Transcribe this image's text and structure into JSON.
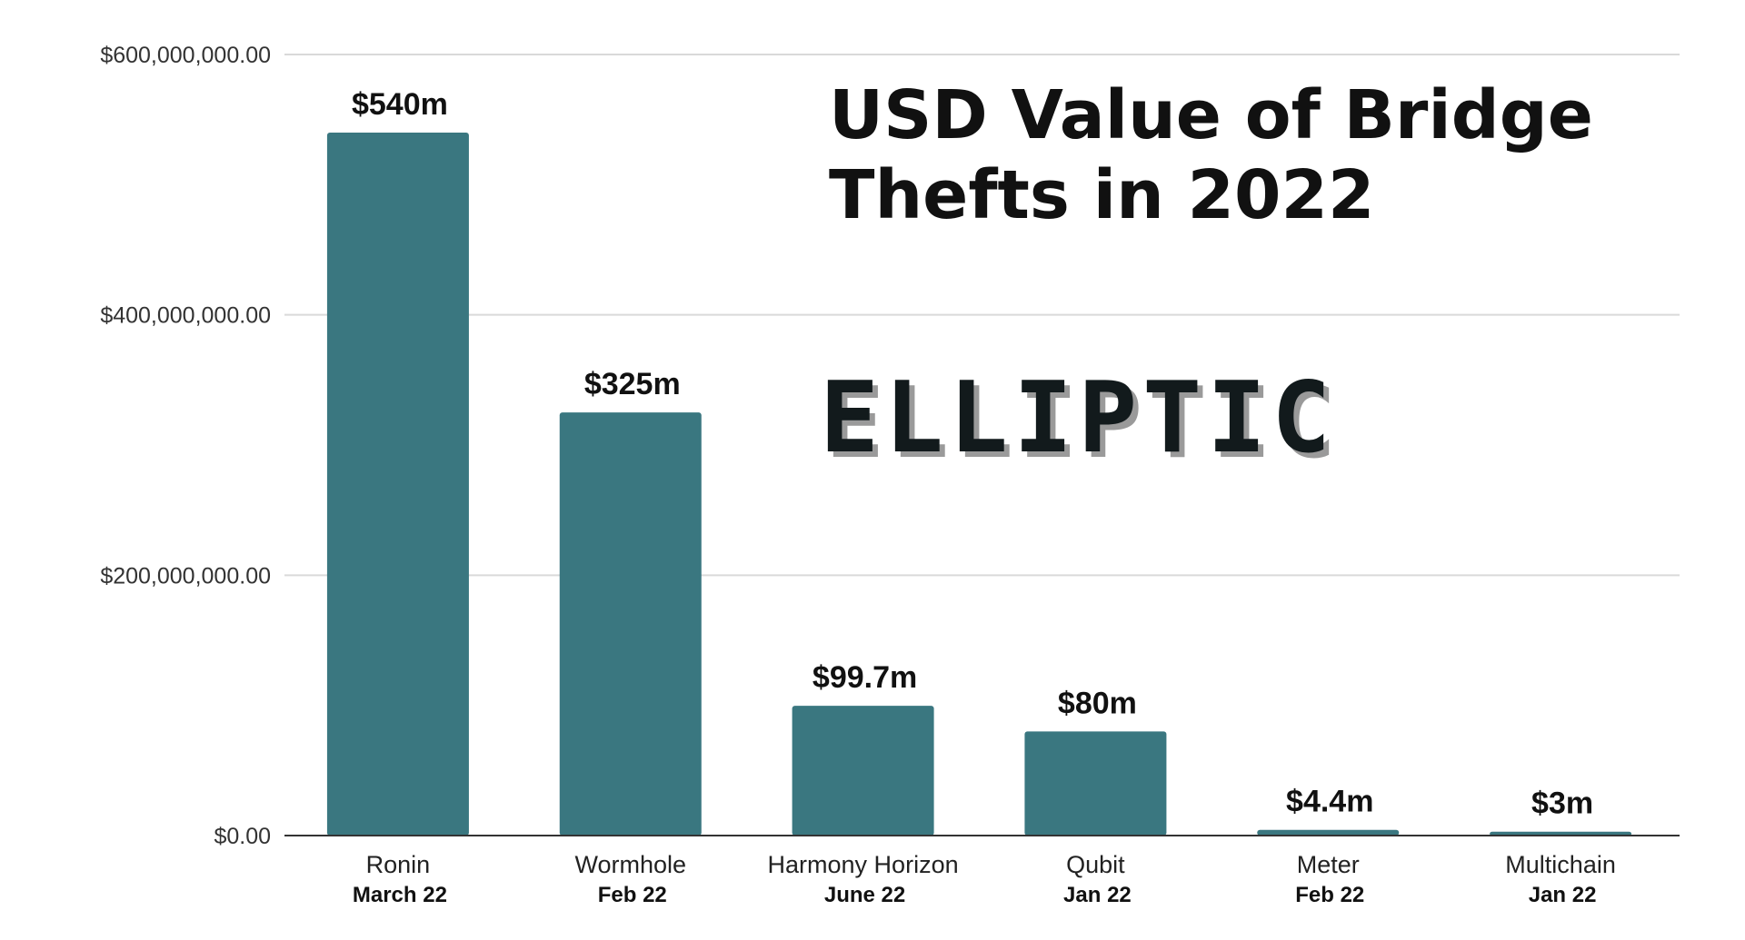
{
  "chart_data": {
    "type": "bar",
    "title_lines": [
      "USD Value of Bridge",
      "Thefts in 2022"
    ],
    "categories": [
      "Ronin",
      "Wormhole",
      "Harmony Horizon",
      "Qubit",
      "Meter",
      "Multichain"
    ],
    "category_sublabels": [
      "March 22",
      "Feb 22",
      "June 22",
      "Jan 22",
      "Feb 22",
      "Jan 22"
    ],
    "values": [
      540000000,
      325000000,
      99700000,
      80000000,
      4400000,
      3000000
    ],
    "data_labels": [
      "$540m",
      "$325m",
      "$99.7m",
      "$80m",
      "$4.4m",
      "$3m"
    ],
    "ylim": [
      0,
      600000000
    ],
    "yticks": [
      0,
      200000000,
      400000000,
      600000000
    ],
    "ytick_labels": [
      "$0.00",
      "$200,000,000.00",
      "$400,000,000.00",
      "$600,000,000.00"
    ],
    "xlabel": "",
    "ylabel": "",
    "grid": true,
    "bar_color": "#3a7780"
  },
  "logo": {
    "text": "ELLIPTIC"
  }
}
